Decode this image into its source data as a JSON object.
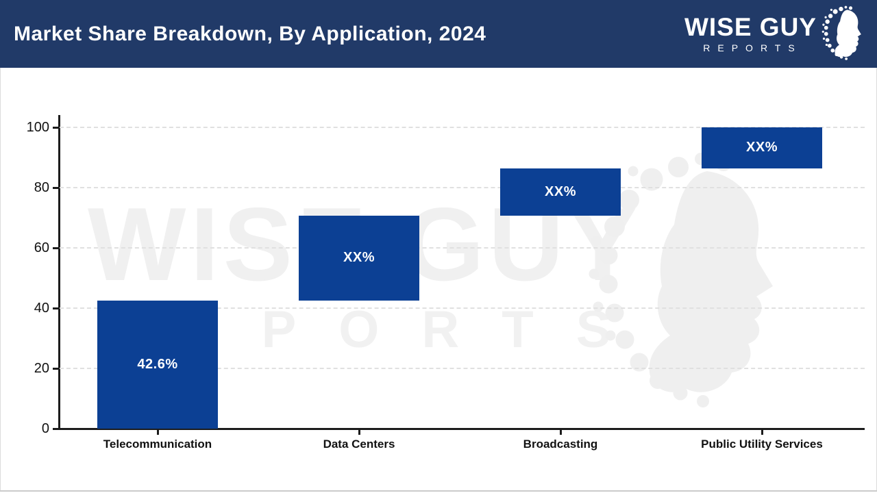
{
  "header": {
    "title": "Market Share Breakdown, By Application, 2024",
    "logo_line1": "WISE GUY",
    "logo_line2": "REPORTS"
  },
  "watermark": {
    "line1": "WISE GUY",
    "line2": "REPORTS"
  },
  "chart_data": {
    "type": "bar",
    "subtype": "waterfall",
    "title": "Market Share Breakdown, By Application, 2024",
    "categories": [
      "Telecommunication",
      "Data Centers",
      "Broadcasting",
      "Public Utility Services"
    ],
    "segments": [
      {
        "start": 0,
        "end": 42.6,
        "label": "42.6%"
      },
      {
        "start": 42.6,
        "end": 70.7,
        "label": "XX%"
      },
      {
        "start": 70.7,
        "end": 86.4,
        "label": "XX%"
      },
      {
        "start": 86.4,
        "end": 100,
        "label": "XX%"
      }
    ],
    "yticks": [
      0,
      20,
      40,
      60,
      80,
      100
    ],
    "ylim": [
      0,
      100
    ],
    "xlabel": "",
    "ylabel": "",
    "grid": "horizontal-dashed",
    "legend": "none",
    "bar_color": "#0c4094",
    "bar_label_color": "#ffffff"
  },
  "colors": {
    "header_bg": "#213a68",
    "header_text": "#ffffff",
    "bar": "#0c4094",
    "gridline": "#e0e0e0",
    "axis": "#1c1c1c",
    "watermark": "#f0f0f0"
  }
}
